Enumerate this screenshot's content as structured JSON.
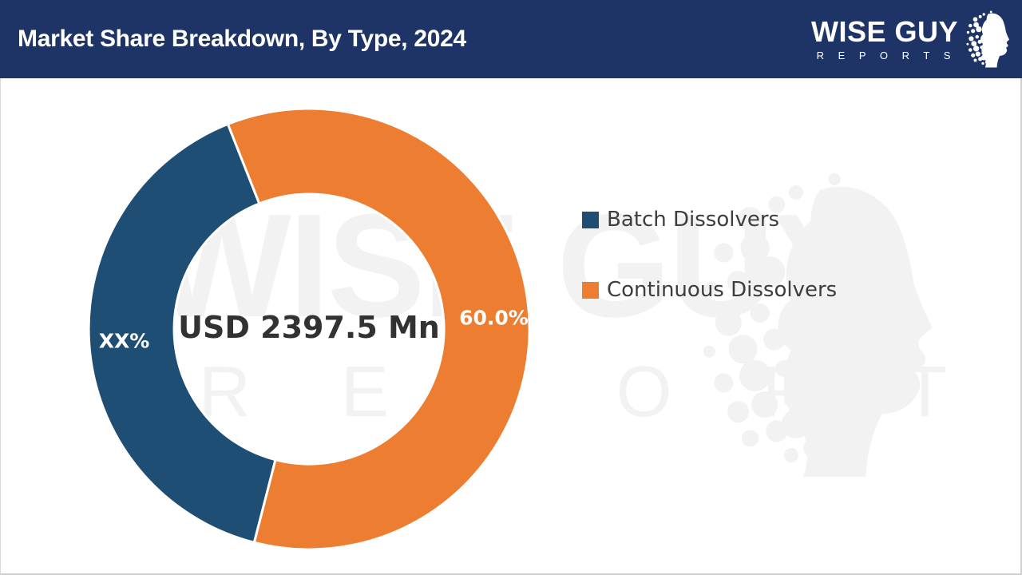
{
  "header": {
    "title": "Market Share Breakdown, By Type, 2024",
    "bg_color": "#1f3466",
    "logo": {
      "name": "WISE GUY",
      "sub": "R E P O R T S",
      "face_icon": "dotted-head-profile-icon"
    }
  },
  "watermark": {
    "line1": "WISE GUY",
    "line2": "R E P O R T S",
    "face_icon": "dotted-head-profile-watermark"
  },
  "chart_data": {
    "type": "donut",
    "title": "Market Share Breakdown, By Type, 2024",
    "center_label": "USD 2397.5 Mn",
    "start_angle_deg": 194.4,
    "direction": "clockwise",
    "legend_position": "right",
    "segments": [
      {
        "label": "Batch Dissolvers",
        "value": 40.0,
        "display_label": "XX%",
        "color": "#1f4e74"
      },
      {
        "label": "Continuous Dissolvers",
        "value": 60.0,
        "display_label": "60.0%",
        "color": "#ed7d31"
      }
    ]
  },
  "colors": {
    "header_navy": "#1f3466",
    "blue_segment": "#1f4e74",
    "orange_segment": "#ed7d31",
    "watermark_gray": "#f2f2f2",
    "text_dark": "#323232"
  }
}
